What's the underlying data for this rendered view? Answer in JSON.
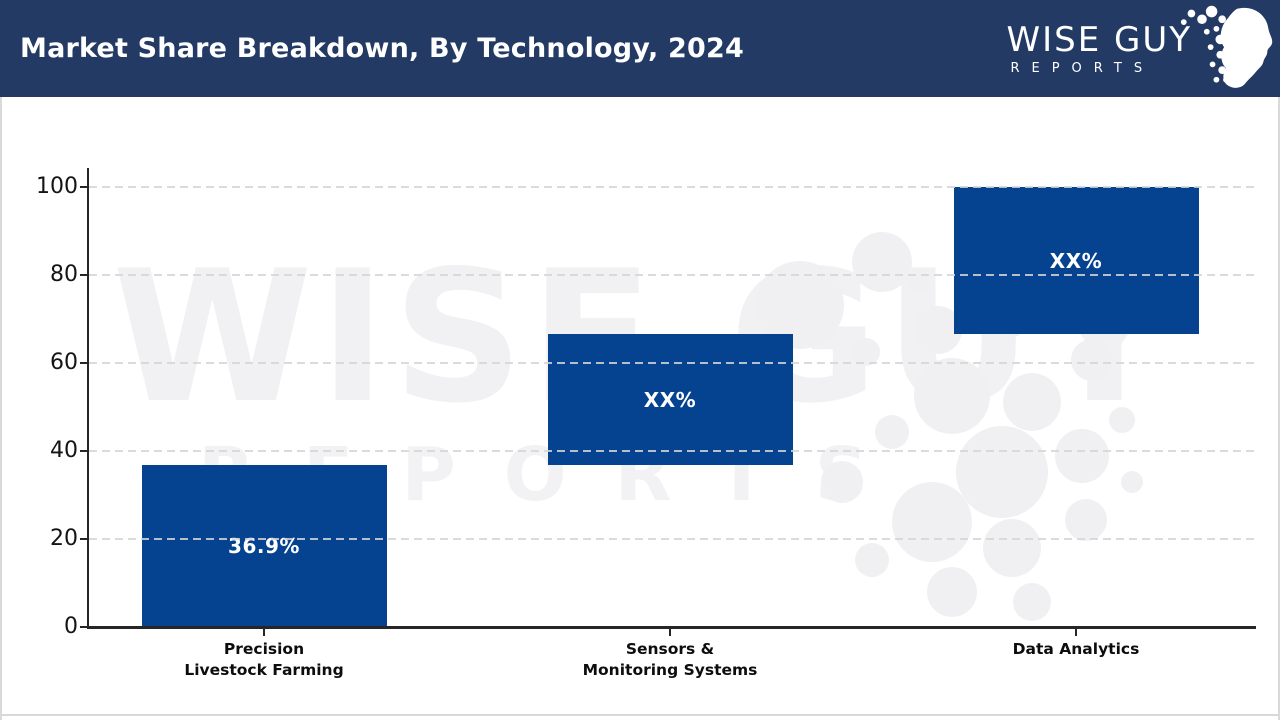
{
  "header": {
    "title": "Market Share Breakdown, By Technology, 2024",
    "logo": {
      "name": "WISE GUY",
      "sub": "REPORTS"
    },
    "bg_color": "#223a64"
  },
  "watermark": {
    "big": "WISE GUY",
    "sub": "REPORTS"
  },
  "chart_data": {
    "type": "bar",
    "variant": "waterfall",
    "title": "Market Share Breakdown, By Technology, 2024",
    "categories": [
      [
        "Precision",
        "Livestock Farming"
      ],
      [
        "Sensors &",
        "Monitoring Systems"
      ],
      [
        "Data Analytics"
      ]
    ],
    "segments": [
      {
        "start": 0,
        "end": 36.9,
        "label": "36.9%"
      },
      {
        "start": 36.9,
        "end": 66.5,
        "label": "XX%"
      },
      {
        "start": 66.5,
        "end": 100,
        "label": "XX%"
      }
    ],
    "yticks": [
      0,
      20,
      40,
      60,
      80,
      100
    ],
    "ylim": [
      0,
      100
    ],
    "bar_color": "#05428f",
    "grid": "dashed-horizontal",
    "legend": "none"
  }
}
